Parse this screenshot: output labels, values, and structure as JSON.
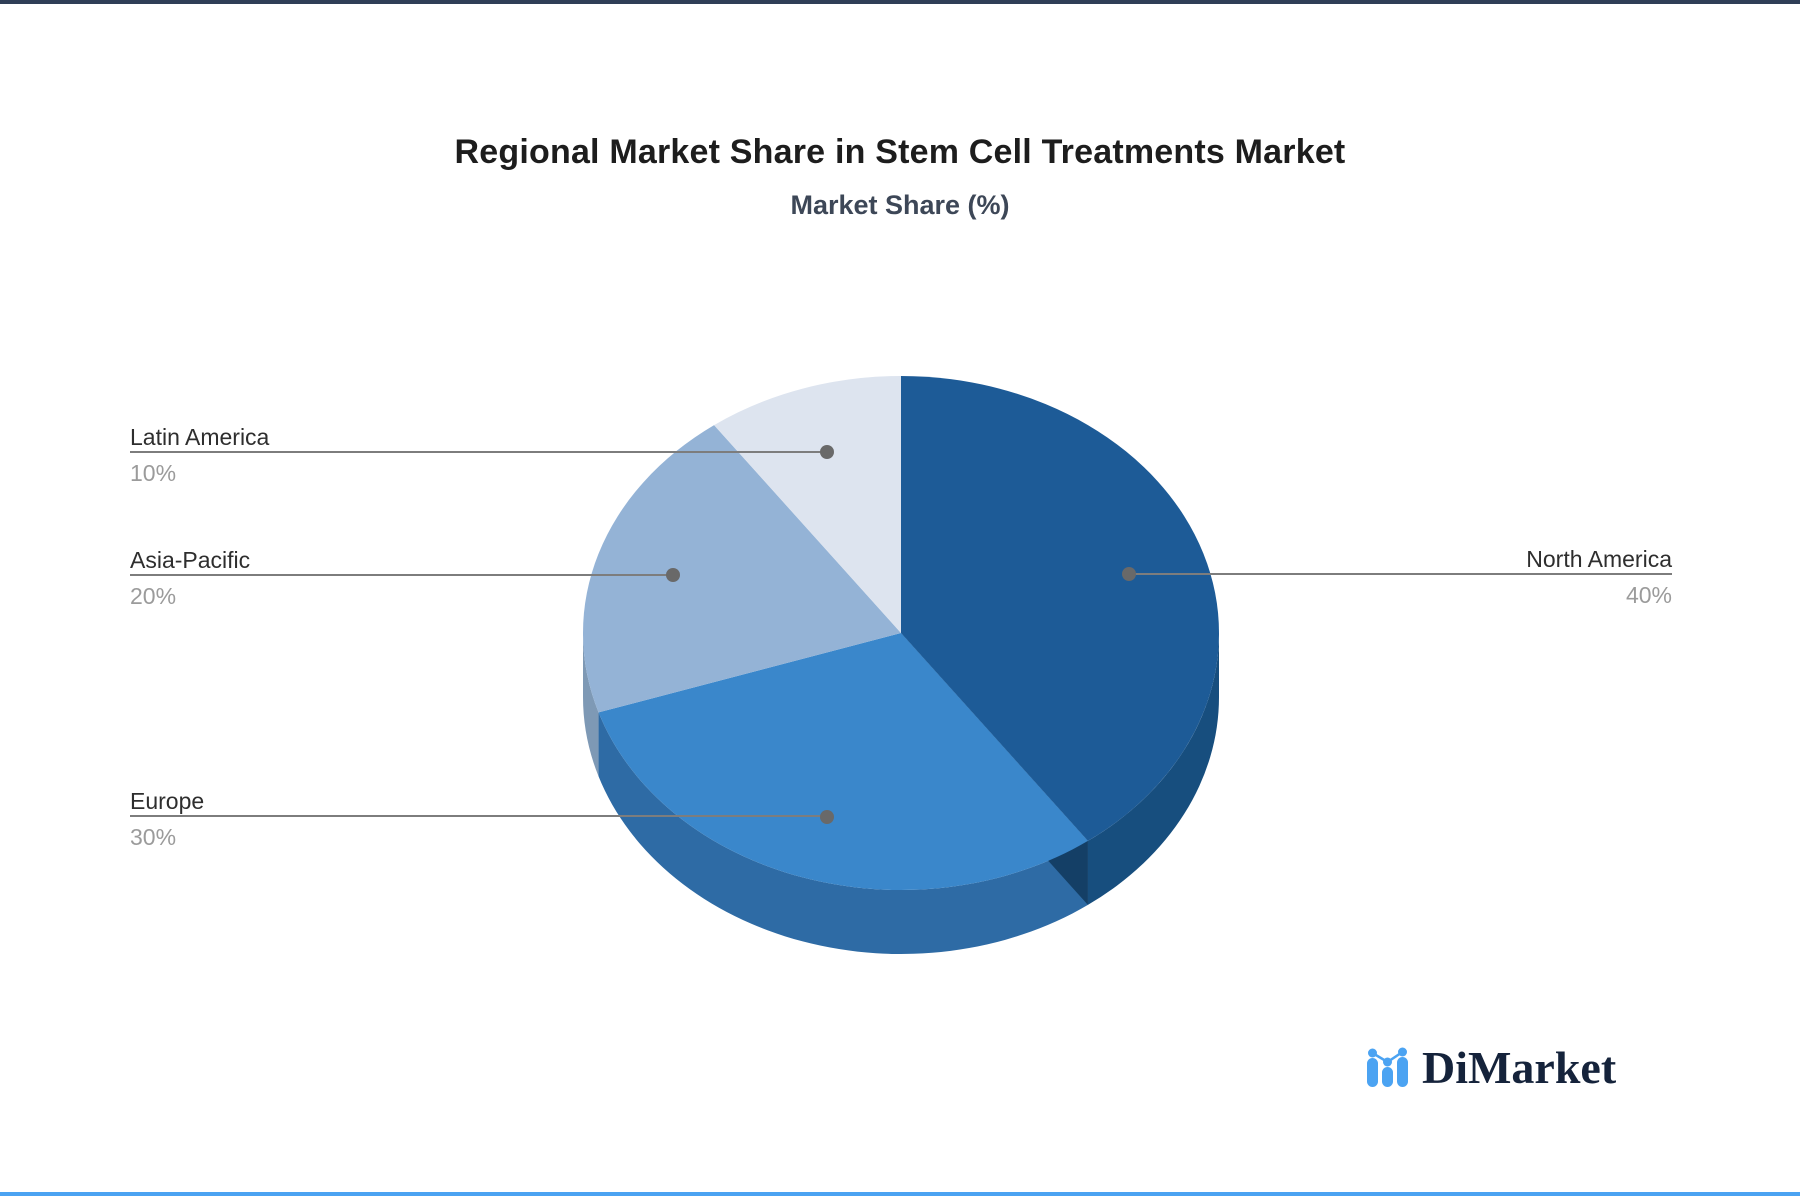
{
  "title": "Regional Market Share in Stem Cell Treatments Market",
  "subtitle": "Market Share (%)",
  "chart_data": {
    "type": "pie",
    "title": "Regional Market Share in Stem Cell Treatments Market",
    "subtitle": "Market Share (%)",
    "unit": "%",
    "style": "3d-pie",
    "start_angle_deg": 0,
    "direction": "clockwise",
    "segments": [
      {
        "label": "North America",
        "value": 40,
        "color": "#1d5b97",
        "side_color": "#174e7e",
        "face_color": "#143f66"
      },
      {
        "label": "Europe",
        "value": 30,
        "color": "#3a87cb",
        "side_color": "#2e6ba5",
        "face_color": "#27598a"
      },
      {
        "label": "Asia-Pacific",
        "value": 20,
        "color": "#94b3d6",
        "side_color": "#7e99b5",
        "face_color": "#71899f"
      },
      {
        "label": "Latin America",
        "value": 10,
        "color": "#dde4ef",
        "side_color": "#c3cede",
        "face_color": "#aebbcd"
      }
    ],
    "legend_position": "callout-labels"
  },
  "callouts": {
    "north_america": {
      "label": "North America",
      "value": "40%"
    },
    "europe": {
      "label": "Europe",
      "value": "30%"
    },
    "asia_pacific": {
      "label": "Asia-Pacific",
      "value": "20%"
    },
    "latin_america": {
      "label": "Latin America",
      "value": "10%"
    }
  },
  "branding": {
    "logo_text": "DiMarket",
    "logo_text_color": "#15233b",
    "logo_icon": "bar-line-chart-logo-icon",
    "logo_icon_color": "#4ba3f2"
  },
  "colors": {
    "background": "#ffffff",
    "title_text": "#1d1d1d",
    "subtitle_text": "#3d4757",
    "callout_line": "#7d7d7d",
    "callout_dot": "#696969",
    "label_text": "#2e2e2e",
    "value_text": "#9b9b9b",
    "accent_top_bar": "#2f3e57",
    "accent_bottom_bar": "#4ba3f2"
  }
}
